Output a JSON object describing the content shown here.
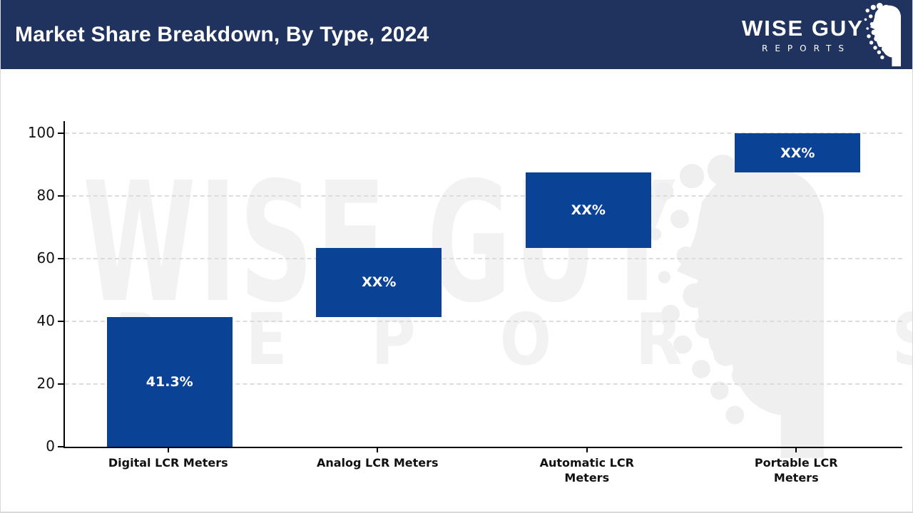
{
  "header": {
    "title": "Market Share Breakdown, By Type, 2024",
    "logo": {
      "brand_line1": "WISE GUY",
      "brand_line2": "REPORTS"
    }
  },
  "watermark": {
    "line1": "WISE GUY",
    "line2": "R E P O R T S"
  },
  "chart_data": {
    "type": "bar",
    "subtype": "waterfall",
    "title": "Market Share Breakdown, By Type, 2024",
    "categories": [
      "Digital LCR Meters",
      "Analog LCR Meters",
      "Automatic LCR Meters",
      "Portable LCR Meters"
    ],
    "bars": [
      {
        "category": "Digital LCR Meters",
        "start": 0,
        "end": 41.3,
        "label": "41.3%"
      },
      {
        "category": "Analog LCR Meters",
        "start": 41.4,
        "end": 63.4,
        "label": "XX%"
      },
      {
        "category": "Automatic LCR Meters",
        "start": 63.3,
        "end": 87.5,
        "label": "XX%"
      },
      {
        "category": "Portable LCR Meters",
        "start": 87.5,
        "end": 100,
        "label": "XX%"
      }
    ],
    "ylim": [
      0,
      100
    ],
    "yticks": [
      0,
      20,
      40,
      60,
      80,
      100
    ],
    "grid": "horizontal-dashed",
    "legend": "none",
    "bar_color": "#0a4295",
    "bar_label_color": "#ffffff",
    "grid_color": "#dcdcdc",
    "axis_color": "#000000",
    "header_bg_color": "#20335f"
  }
}
